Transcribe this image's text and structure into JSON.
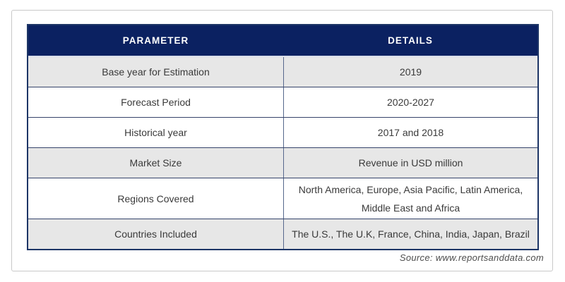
{
  "colors": {
    "header_bg": "#0b2161",
    "header_text": "#ffffff",
    "row_gray_bg": "#e7e7e7",
    "row_white_bg": "#ffffff",
    "body_text": "#3a3a3a",
    "table_outer_border": "#1d3566",
    "row_divider": "#35436a",
    "column_divider": "#56688c",
    "frame_border": "#c9c9c9",
    "source_text": "#4d4d4d"
  },
  "table": {
    "columns": [
      "PARAMETER",
      "DETAILS"
    ],
    "rows": [
      {
        "parameter": "Base year for Estimation",
        "details": "2019"
      },
      {
        "parameter": "Forecast Period",
        "details": "2020-2027"
      },
      {
        "parameter": "Historical year",
        "details": "2017 and 2018"
      },
      {
        "parameter": "Market Size",
        "details": "Revenue in USD million"
      },
      {
        "parameter": "Regions Covered",
        "details": "North America, Europe, Asia Pacific, Latin America, Middle East and Africa",
        "details_lines": [
          "North America, Europe, Asia Pacific, Latin America,",
          "Middle East and Africa"
        ]
      },
      {
        "parameter": "Countries Included",
        "details": "The U.S., The  U.K, France, China, India, Japan, Brazil"
      }
    ]
  },
  "source": {
    "text": "Source: www.reportsanddata.com"
  }
}
